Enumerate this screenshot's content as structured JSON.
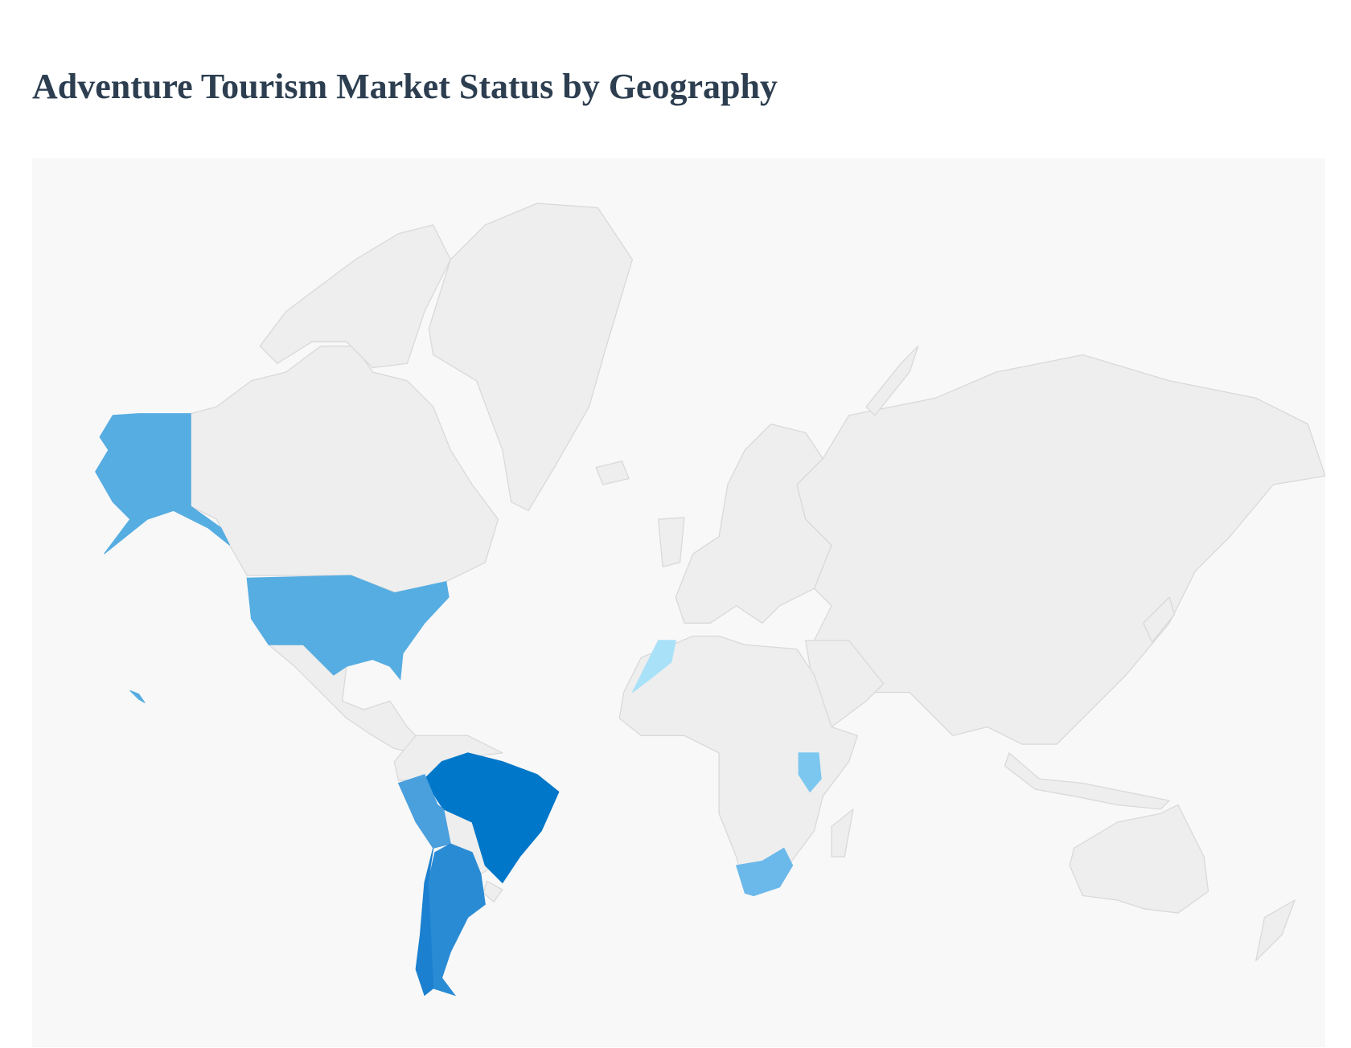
{
  "header": {
    "title": "Adventure Tourism Market Status by Geography"
  },
  "map": {
    "background": "#f8f8f8",
    "land_color": "#eeeeee",
    "border_color": "#d9d9d9",
    "highlight_colors": [
      "#56ade2",
      "#56ade2",
      "#0077c8",
      "#4a9fdd",
      "#2a8bd5",
      "#1b80cf",
      "#a9e1f9",
      "#7cc7f0",
      "#6bb8ea"
    ]
  }
}
